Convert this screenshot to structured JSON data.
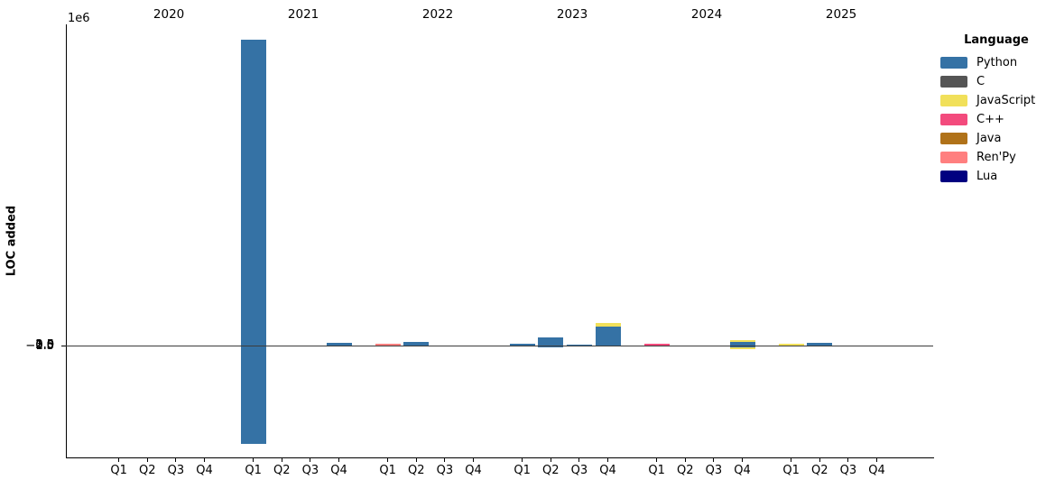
{
  "figure": {
    "ylabel": "LOC added",
    "offset_text": "1e6"
  },
  "chart_data": {
    "type": "bar",
    "stacked": true,
    "title": "",
    "xlabel": "",
    "ylabel": "LOC added",
    "y_unit_multiplier_label": "1e6",
    "grid": false,
    "legend": {
      "title": "Language",
      "position": "right"
    },
    "languages": [
      {
        "name": "Python",
        "color": "#3572A5"
      },
      {
        "name": "C",
        "color": "#555555"
      },
      {
        "name": "JavaScript",
        "color": "#f1e05a"
      },
      {
        "name": "C++",
        "color": "#f34b7d"
      },
      {
        "name": "Java",
        "color": "#b07219"
      },
      {
        "name": "Ren'Py",
        "color": "#ff7f7f"
      },
      {
        "name": "Lua",
        "color": "#000080"
      }
    ],
    "years": [
      "2020",
      "2021",
      "2022",
      "2023",
      "2024",
      "2025"
    ],
    "quarters": [
      "Q1",
      "Q2",
      "Q3",
      "Q4"
    ],
    "ytick_values": [
      3.0,
      2.5,
      2.0,
      1.5,
      1.0,
      0.5,
      0.0,
      -0.5,
      -1.0
    ],
    "ylim": [
      -1060000,
      3050000
    ],
    "bars": [
      {
        "year": "2021",
        "quarter": "Q1",
        "segments": [
          {
            "language": "Python",
            "value": 2900000
          },
          {
            "language": "Python",
            "value": -930000
          }
        ]
      },
      {
        "year": "2021",
        "quarter": "Q4",
        "segments": [
          {
            "language": "Python",
            "value": 25000
          },
          {
            "language": "Python",
            "value": -8000
          }
        ]
      },
      {
        "year": "2022",
        "quarter": "Q1",
        "segments": [
          {
            "language": "Ren'Py",
            "value": 15000
          }
        ]
      },
      {
        "year": "2022",
        "quarter": "Q2",
        "segments": [
          {
            "language": "Python",
            "value": 30000
          },
          {
            "language": "Python",
            "value": -8000
          }
        ]
      },
      {
        "year": "2022",
        "quarter": "Q4",
        "segments": [
          {
            "language": "Lua",
            "value": -8000
          }
        ]
      },
      {
        "year": "2023",
        "quarter": "Q1",
        "segments": [
          {
            "language": "Python",
            "value": 15000
          },
          {
            "language": "Python",
            "value": -10000
          }
        ]
      },
      {
        "year": "2023",
        "quarter": "Q2",
        "segments": [
          {
            "language": "Python",
            "value": 75000
          },
          {
            "language": "Python",
            "value": -20000
          }
        ]
      },
      {
        "year": "2023",
        "quarter": "Q3",
        "segments": [
          {
            "language": "Python",
            "value": 8000
          },
          {
            "language": "Lua",
            "value": -12000
          }
        ]
      },
      {
        "year": "2023",
        "quarter": "Q4",
        "segments": [
          {
            "language": "Python",
            "value": 180000
          },
          {
            "language": "JavaScript",
            "value": 35000
          },
          {
            "language": "Python",
            "value": -10000
          }
        ]
      },
      {
        "year": "2024",
        "quarter": "Q1",
        "segments": [
          {
            "language": "C++",
            "value": 20000
          }
        ]
      },
      {
        "year": "2024",
        "quarter": "Q4",
        "segments": [
          {
            "language": "Python",
            "value": 35000
          },
          {
            "language": "JavaScript",
            "value": 18000
          },
          {
            "language": "Python",
            "value": -18000
          },
          {
            "language": "JavaScript",
            "value": -18000
          }
        ]
      },
      {
        "year": "2025",
        "quarter": "Q1",
        "segments": [
          {
            "language": "JavaScript",
            "value": 14000
          }
        ]
      },
      {
        "year": "2025",
        "quarter": "Q2",
        "segments": [
          {
            "language": "Python",
            "value": 26000
          },
          {
            "language": "Lua",
            "value": -12000
          }
        ]
      }
    ]
  }
}
